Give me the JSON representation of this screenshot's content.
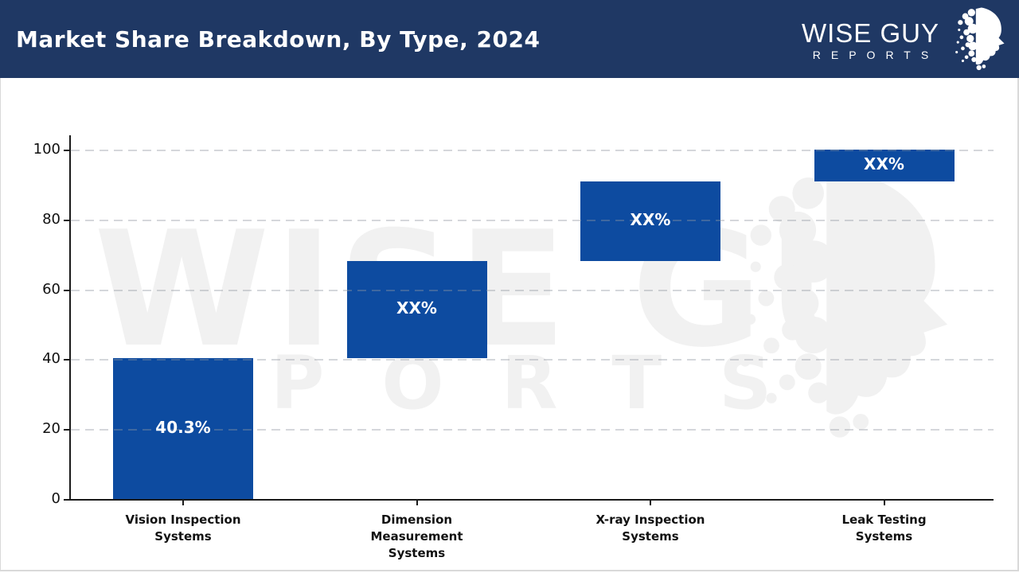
{
  "header": {
    "title": "Market Share Breakdown, By Type, 2024",
    "brand": {
      "line1": "WISE GUY",
      "line2": "REPORTS"
    }
  },
  "watermark": {
    "line1": "WISE GU",
    "line2": "PORTS"
  },
  "colors": {
    "header_bg": "#1f3864",
    "bar": "#0d4ba0",
    "bar_label": "#ffffff",
    "axis": "#1a1a1a",
    "gridline": "#c9cdd4",
    "watermark": "#f1f1f1"
  },
  "chart_data": {
    "type": "bar",
    "subtype": "waterfall-floating-segments",
    "title": "Market Share Breakdown, By Type, 2024",
    "categories": [
      "Vision Inspection\nSystems",
      "Dimension\nMeasurement\nSystems",
      "X-ray Inspection\nSystems",
      "Leak Testing\nSystems"
    ],
    "segments": [
      {
        "category": "Vision Inspection Systems",
        "start": 0,
        "end": 40.3,
        "label": "40.3%"
      },
      {
        "category": "Dimension Measurement Systems",
        "start": 40.3,
        "end": 68,
        "label": "XX%"
      },
      {
        "category": "X-ray Inspection Systems",
        "start": 68,
        "end": 91,
        "label": "XX%"
      },
      {
        "category": "Leak Testing Systems",
        "start": 91,
        "end": 100,
        "label": "XX%"
      }
    ],
    "xlabel": "",
    "ylabel": "",
    "yticks": [
      0,
      20,
      40,
      60,
      80,
      100
    ],
    "ylim": [
      0,
      104
    ],
    "grid": "horizontal-dashed-over-bars",
    "legend": "none",
    "bar_color": "#0d4ba0",
    "value_label_color": "#ffffff"
  }
}
